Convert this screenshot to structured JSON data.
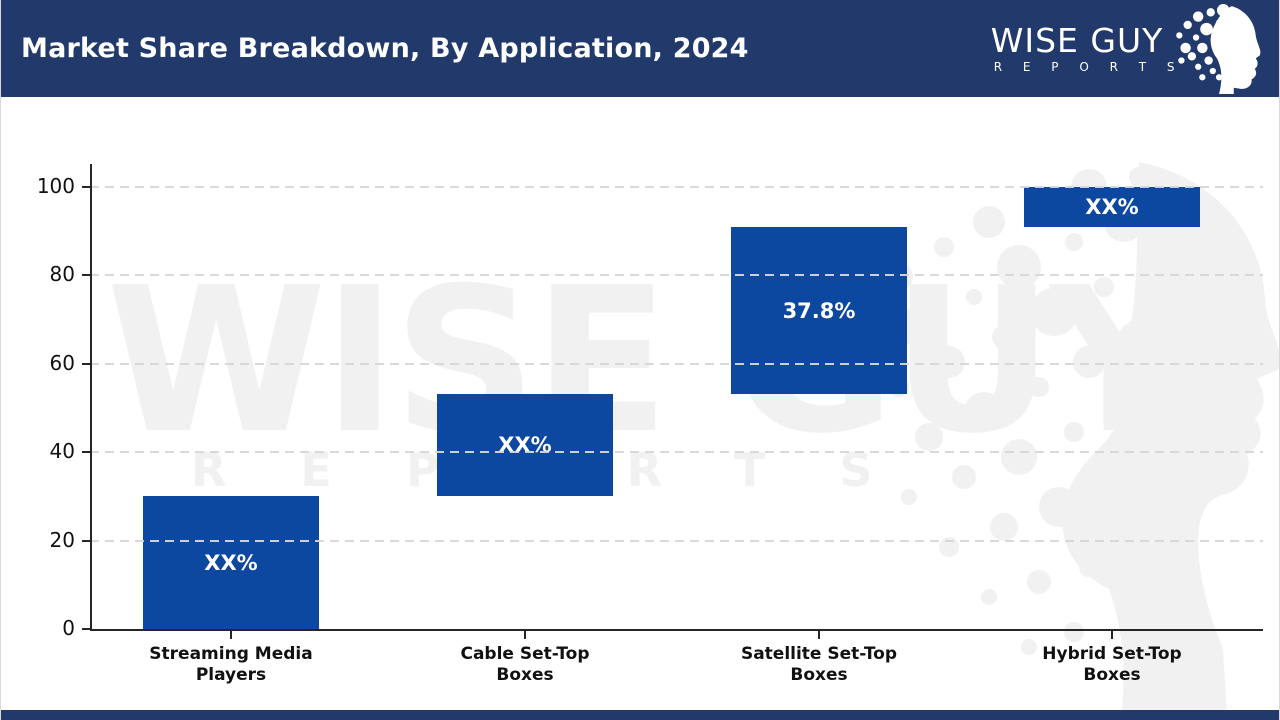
{
  "header": {
    "title": "Market Share Breakdown, By Application, 2024",
    "logo": {
      "line1": "WISE GUY",
      "line2": "R E P O R T S"
    }
  },
  "watermark": {
    "line1": "WISE GUY",
    "line2": "REPORTS"
  },
  "footer": {},
  "chart_data": {
    "type": "bar",
    "variant": "waterfall-floating-bars",
    "title": "Market Share Breakdown, By Application, 2024",
    "categories": [
      "Streaming Media Players",
      "Cable Set-Top Boxes",
      "Satellite Set-Top Boxes",
      "Hybrid Set-Top Boxes"
    ],
    "categories_display": [
      "Streaming Media\nPlayers",
      "Cable Set-Top\nBoxes",
      "Satellite Set-Top\nBoxes",
      "Hybrid Set-Top\nBoxes"
    ],
    "segments": [
      {
        "category": "Streaming Media Players",
        "start": 0,
        "end": 30,
        "value": 30,
        "label": "XX%"
      },
      {
        "category": "Cable Set-Top Boxes",
        "start": 30,
        "end": 53,
        "value": 23,
        "label": "XX%"
      },
      {
        "category": "Satellite Set-Top Boxes",
        "start": 53,
        "end": 90.8,
        "value": 37.8,
        "label": "37.8%"
      },
      {
        "category": "Hybrid Set-Top Boxes",
        "start": 90.8,
        "end": 100,
        "value": 9.2,
        "label": "XX%"
      }
    ],
    "xlabel": "",
    "ylabel": "",
    "ylim": [
      0,
      100
    ],
    "yticks": [
      0,
      20,
      40,
      60,
      80,
      100
    ],
    "grid": "horizontal-dashed-over-bars",
    "legend": "none",
    "bar_color": "#0c47a0",
    "bar_label_color": "#ffffff",
    "gridline_color": "#d7d7d7",
    "axis_color": "#262626",
    "header_bg": "#223a6b",
    "watermark_color": "#f1f1f1"
  }
}
